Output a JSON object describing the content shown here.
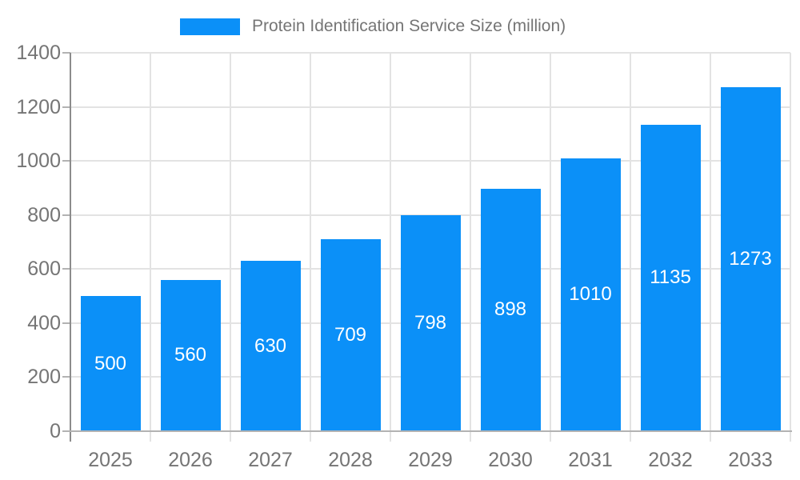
{
  "legend": {
    "label": "Protein Identification Service Size (million)"
  },
  "colors": {
    "bar": "#0B90F8",
    "axis_text": "#757575",
    "bar_label_text": "#ffffff",
    "grid": "#e3e3e3",
    "x_axis_line": "#b3b3b3",
    "y_axis_line": "#8c8c8c",
    "background": "#ffffff"
  },
  "chart_data": {
    "type": "bar",
    "title": "Protein Identification Service Size (million)",
    "categories": [
      "2025",
      "2026",
      "2027",
      "2028",
      "2029",
      "2030",
      "2031",
      "2032",
      "2033"
    ],
    "values": [
      500,
      560,
      630,
      709,
      798,
      898,
      1010,
      1135,
      1273
    ],
    "value_labels": [
      "500",
      "560",
      "630",
      "709",
      "798",
      "898",
      "1010",
      "1135",
      "1273"
    ],
    "xlabel": "",
    "ylabel": "",
    "ylim": [
      0,
      1400
    ],
    "yticks": [
      0,
      200,
      400,
      600,
      800,
      1000,
      1200,
      1400
    ],
    "ytick_labels": [
      "0",
      "200",
      "400",
      "600",
      "800",
      "1000",
      "1200",
      "1400"
    ],
    "grid": true,
    "legend_position": "top",
    "bar_label_position": "center"
  }
}
